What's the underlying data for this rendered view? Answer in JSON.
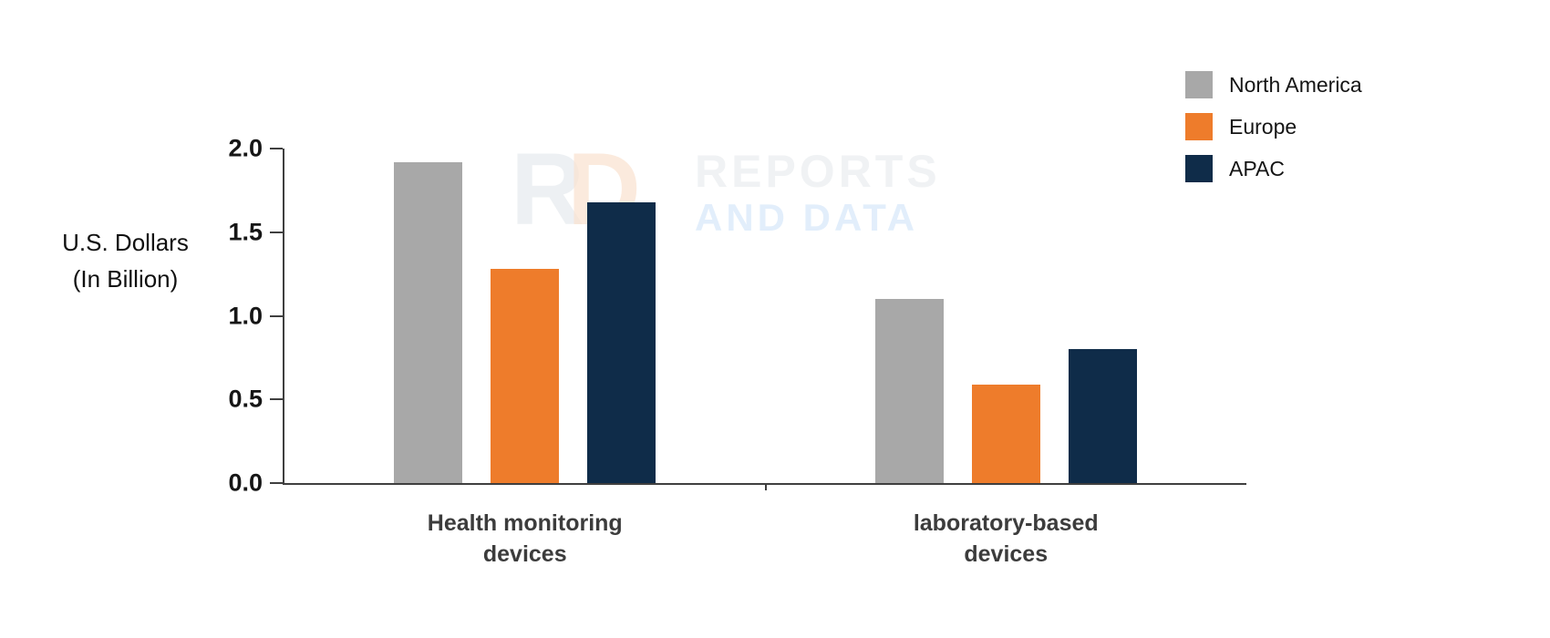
{
  "watermark": {
    "logo_letter_r": "R",
    "logo_letter_d": "D",
    "line1": "REPORTS",
    "line2": "AND DATA"
  },
  "y_axis_title": {
    "line1": "U.S. Dollars",
    "line2": "(In Billion)"
  },
  "chart_data": {
    "type": "bar",
    "title": "",
    "xlabel": "",
    "ylabel": "U.S. Dollars (In Billion)",
    "categories": [
      "Health monitoring\ndevices",
      "laboratory-based\ndevices"
    ],
    "series": [
      {
        "name": "North America",
        "color": "#a8a8a8",
        "values": [
          1.92,
          1.1
        ]
      },
      {
        "name": "Europe",
        "color": "#ee7c2b",
        "values": [
          1.28,
          0.59
        ]
      },
      {
        "name": "APAC",
        "color": "#0f2c49",
        "values": [
          1.68,
          0.8
        ]
      }
    ],
    "yticks": [
      0.0,
      0.5,
      1.0,
      1.5,
      2.0
    ],
    "ylim": [
      0,
      2.0
    ],
    "grid": false,
    "legend_position": "top-right"
  }
}
